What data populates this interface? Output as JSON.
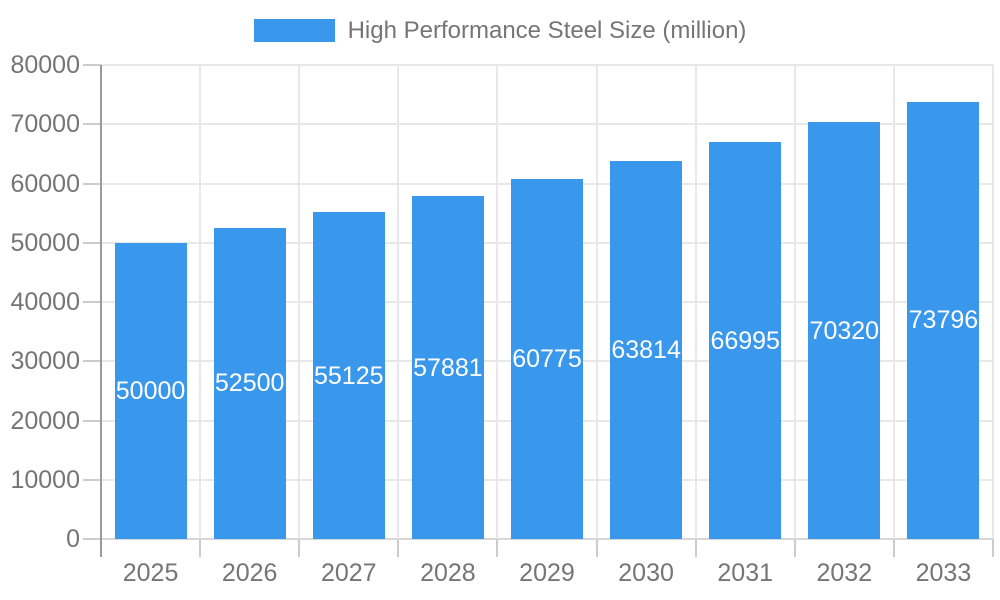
{
  "legend": {
    "label": "High Performance Steel Size (million)"
  },
  "chart_data": {
    "type": "bar",
    "title": "",
    "xlabel": "",
    "ylabel": "",
    "series_name": "High Performance Steel Size (million)",
    "categories": [
      "2025",
      "2026",
      "2027",
      "2028",
      "2029",
      "2030",
      "2031",
      "2032",
      "2033"
    ],
    "values": [
      50000,
      52500,
      55125,
      57881,
      60775,
      63814,
      66995,
      70320,
      73796
    ],
    "bar_value_labels": [
      "50000",
      "52500",
      "55125",
      "57881",
      "60775",
      "63814",
      "66995",
      "70320",
      "73796"
    ],
    "ylim": [
      0,
      80000
    ],
    "ytick_step": 10000,
    "ytick_labels": [
      "0",
      "10000",
      "20000",
      "30000",
      "40000",
      "50000",
      "60000",
      "70000",
      "80000"
    ],
    "grid": true,
    "legend_position": "top",
    "colors": {
      "bar": "#3997EC",
      "axis_text": "#757575",
      "grid": "#E8E8E8",
      "tick": "#CCCCCC",
      "axis_line": "#9A9A9A",
      "bar_label": "#FFFFFF",
      "background": "#FFFFFF"
    }
  }
}
